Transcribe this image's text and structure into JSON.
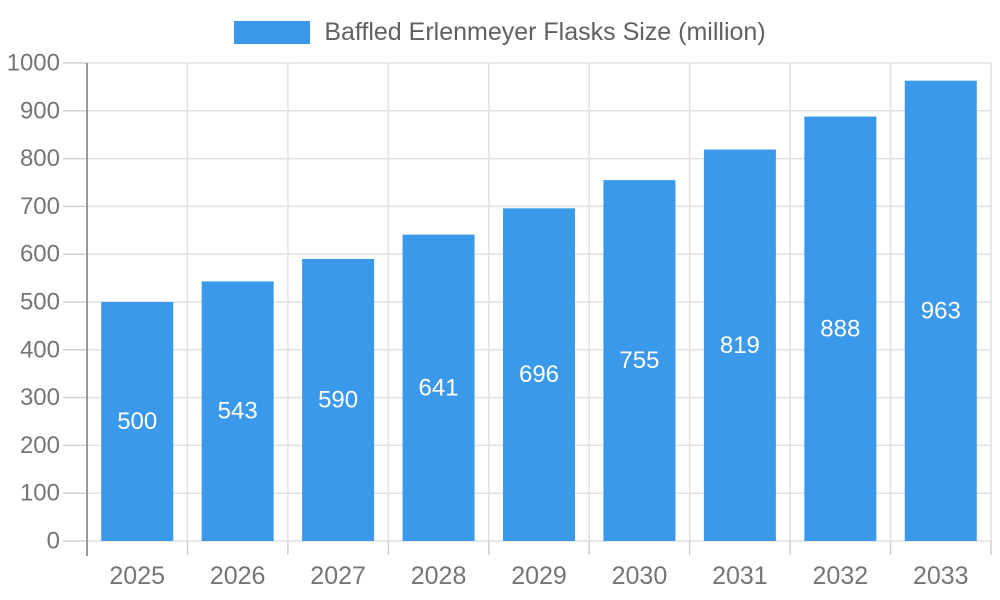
{
  "chart_data": {
    "type": "bar",
    "title": "Baffled Erlenmeyer Flasks Size (million)",
    "legend": {
      "position": "top-center",
      "entries": [
        "Baffled Erlenmeyer Flasks Size (million)"
      ]
    },
    "categories": [
      "2025",
      "2026",
      "2027",
      "2028",
      "2029",
      "2030",
      "2031",
      "2032",
      "2033"
    ],
    "values": [
      500,
      543,
      590,
      641,
      696,
      755,
      819,
      888,
      963
    ],
    "value_labels_shown": true,
    "xlabel": "",
    "ylabel": "",
    "ylim": [
      0,
      1000
    ],
    "yticks": [
      0,
      100,
      200,
      300,
      400,
      500,
      600,
      700,
      800,
      900,
      1000
    ],
    "grid": "horizontal-and-vertical"
  },
  "colors": {
    "bar": "#3B99EC",
    "background": "#FFFFFF",
    "gridline": "#E2E2E2",
    "axis_line": "#999999",
    "tick_mark": "#CFCFCF",
    "axis_label": "#757575",
    "legend_text": "#616161",
    "value_label": "#FFFFFF"
  }
}
